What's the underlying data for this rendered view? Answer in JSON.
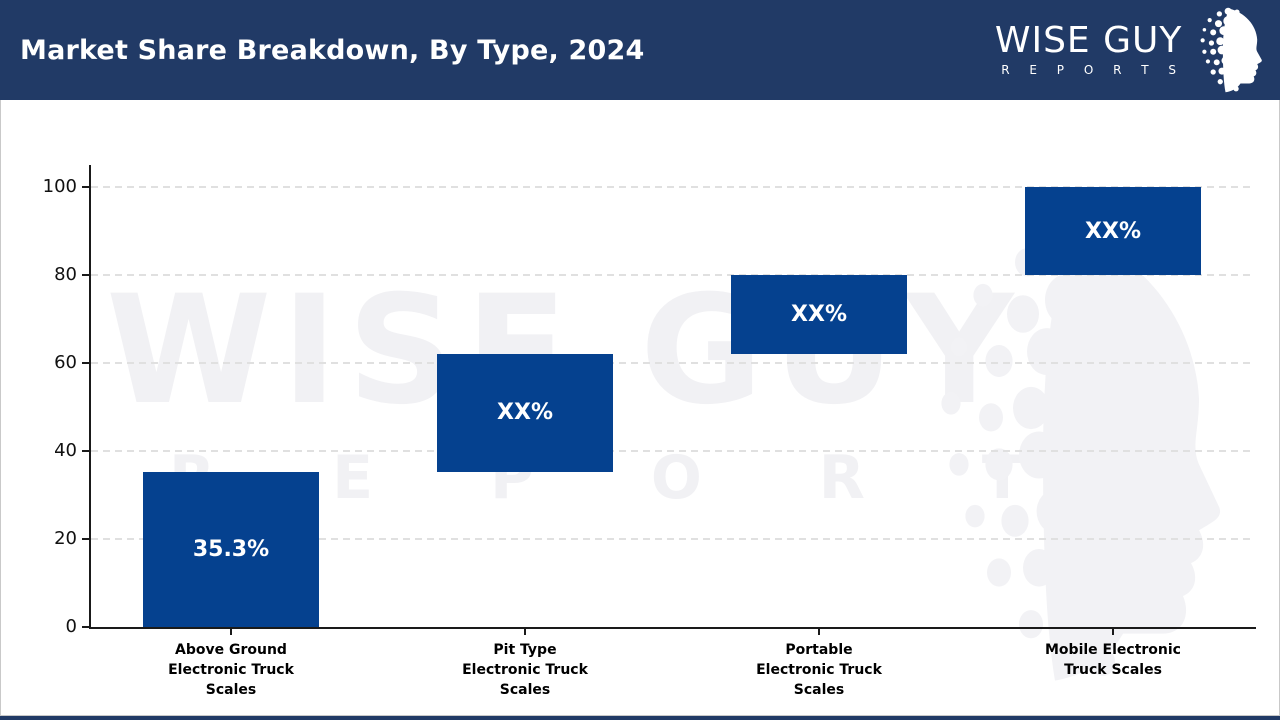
{
  "header": {
    "title": "Market Share Breakdown, By Type, 2024",
    "logo": {
      "name": "WISE GUY",
      "sub": "R E P O R T S"
    }
  },
  "watermark": {
    "line1": "WISE GUY",
    "line2": "R E P O R T S"
  },
  "colors": {
    "header_navy": "#213a66",
    "bar_blue": "#05418f",
    "grid_gray": "#e0e0e0",
    "axis_black": "#1a1a1a",
    "watermark_gray": "#f1f1f4"
  },
  "chart_data": {
    "type": "bar",
    "subtype": "floating-stacked-breakdown",
    "title": "Market Share Breakdown, By Type, 2024",
    "categories": [
      "Above Ground\nElectronic Truck\nScales",
      "Pit Type\nElectronic Truck\nScales",
      "Portable\nElectronic Truck\nScales",
      "Mobile Electronic\nTruck Scales"
    ],
    "segments": [
      {
        "category": "Above Ground Electronic Truck Scales",
        "start": 0,
        "end": 35.3,
        "label": "35.3%"
      },
      {
        "category": "Pit Type Electronic Truck Scales",
        "start": 35.3,
        "end": 62,
        "label": "XX%"
      },
      {
        "category": "Portable Electronic Truck Scales",
        "start": 62,
        "end": 80,
        "label": "XX%"
      },
      {
        "category": "Mobile Electronic Truck Scales",
        "start": 80,
        "end": 100,
        "label": "XX%"
      }
    ],
    "ylim": [
      0,
      100
    ],
    "yticks": [
      0,
      20,
      40,
      60,
      80,
      100
    ],
    "xlabel": "",
    "ylabel": "",
    "grid": "dashed-horizontal",
    "legend": "none",
    "bar_value_color": "#ffffff"
  }
}
